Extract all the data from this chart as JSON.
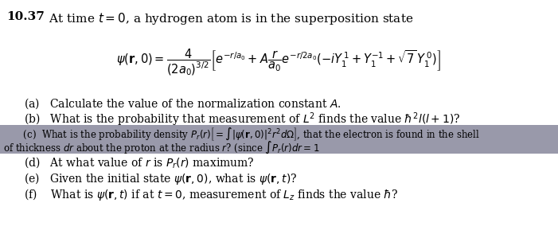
{
  "title_num": "10.37",
  "title_text": "  At time $t = 0$, a hydrogen atom is in the superposition state",
  "equation": "$\\psi(\\mathbf{r}, 0) = \\dfrac{4}{(2a_0)^{3/2}}\\left[e^{-r/a_0} + A\\dfrac{r}{a_0}e^{-r/2a_0}(-iY_1^{\\,1} + Y_1^{-1} + \\sqrt{7}\\,Y_1^{\\,0})\\right]$",
  "item_a": "(a)   Calculate the value of the normalization constant $A$.",
  "item_b": "(b)   What is the probability that measurement of $L^2$ finds the value $\\hbar^2 l(l + 1)$?",
  "item_c_line1": "    (c)  What is the probability density $P_r(r)\\left[= \\int|\\psi(\\mathbf{r},0)|^2 r^2 d\\Omega\\right]$, that the electron is found in the shell",
  "item_c_line2": "of thickness $dr$ about the proton at the radius $r$? (since $\\int P_r(r)dr = 1$",
  "item_d": "(d)   At what value of $r$ is $P_r(r)$ maximum?",
  "item_e": "(e)   Given the initial state $\\psi(\\mathbf{r}, 0)$, what is $\\psi(\\mathbf{r}, t)$?",
  "item_f": "(f)    What is $\\psi(\\mathbf{r}, t)$ if at $t = 0$, measurement of $L_z$ finds the value $\\hbar$?",
  "highlight_color": "#9999aa",
  "bg_color": "#ffffff",
  "text_color": "#000000",
  "fontsize_title": 11,
  "fontsize_eq": 10.5,
  "fontsize_items": 10,
  "fontsize_highlight": 8.5
}
